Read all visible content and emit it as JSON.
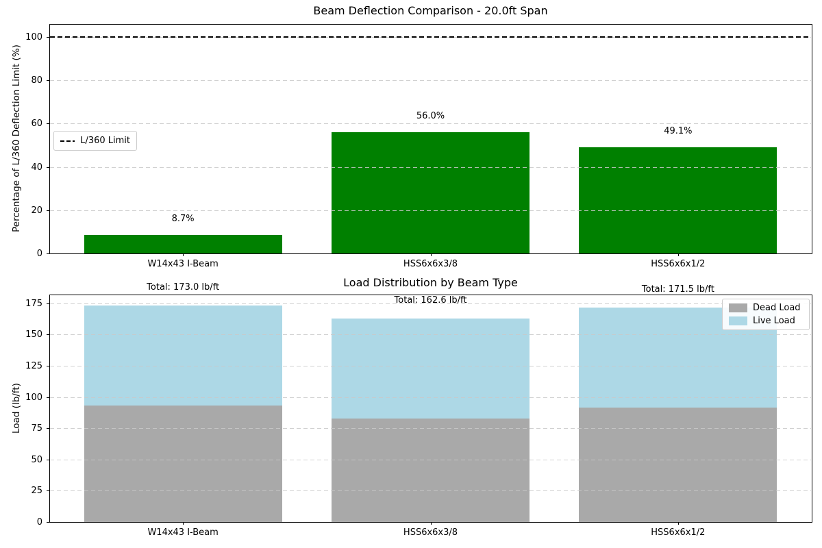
{
  "chart_data": [
    {
      "type": "bar",
      "title": "Beam Deflection Comparison - 20.0ft Span",
      "ylabel": "Percentage of L/360 Deflection Limit (%)",
      "xlabel": "",
      "categories": [
        "W14x43 I-Beam",
        "HSS6x6x3/8",
        "HSS6x6x1/2"
      ],
      "values": [
        8.7,
        56.0,
        49.1
      ],
      "bar_labels": [
        "8.7%",
        "56.0%",
        "49.1%"
      ],
      "bar_color": "#008000",
      "ylim": [
        0,
        106
      ],
      "yticks": [
        0,
        20,
        40,
        60,
        80,
        100
      ],
      "grid": true,
      "limit_line": {
        "value": 100,
        "label": "L/360 Limit",
        "color": "#000000",
        "style": "dashed"
      },
      "legend": {
        "position": "center-left",
        "entries": [
          {
            "label": "L/360 Limit",
            "swatch": "dashed-line",
            "color": "#000000"
          }
        ]
      }
    },
    {
      "type": "stacked-bar",
      "title": "Load Distribution by Beam Type",
      "ylabel": "Load (lb/ft)",
      "xlabel": "",
      "categories": [
        "W14x43 I-Beam",
        "HSS6x6x3/8",
        "HSS6x6x1/2"
      ],
      "series": [
        {
          "name": "Dead Load",
          "color": "#a9a9a9",
          "values": [
            93.0,
            82.6,
            91.5
          ]
        },
        {
          "name": "Live Load",
          "color": "#add8e6",
          "values": [
            80.0,
            80.0,
            80.0
          ]
        }
      ],
      "totals": [
        173.0,
        162.6,
        171.5
      ],
      "total_labels": [
        "Total: 173.0 lb/ft",
        "Total: 162.6 lb/ft",
        "Total: 171.5 lb/ft"
      ],
      "ylim": [
        0,
        182
      ],
      "yticks": [
        0,
        25,
        50,
        75,
        100,
        125,
        150,
        175
      ],
      "grid": true,
      "legend": {
        "position": "upper-right",
        "entries": [
          {
            "label": "Dead Load",
            "swatch": "rect",
            "color": "#a9a9a9"
          },
          {
            "label": "Live Load",
            "swatch": "rect",
            "color": "#add8e6"
          }
        ]
      }
    }
  ]
}
